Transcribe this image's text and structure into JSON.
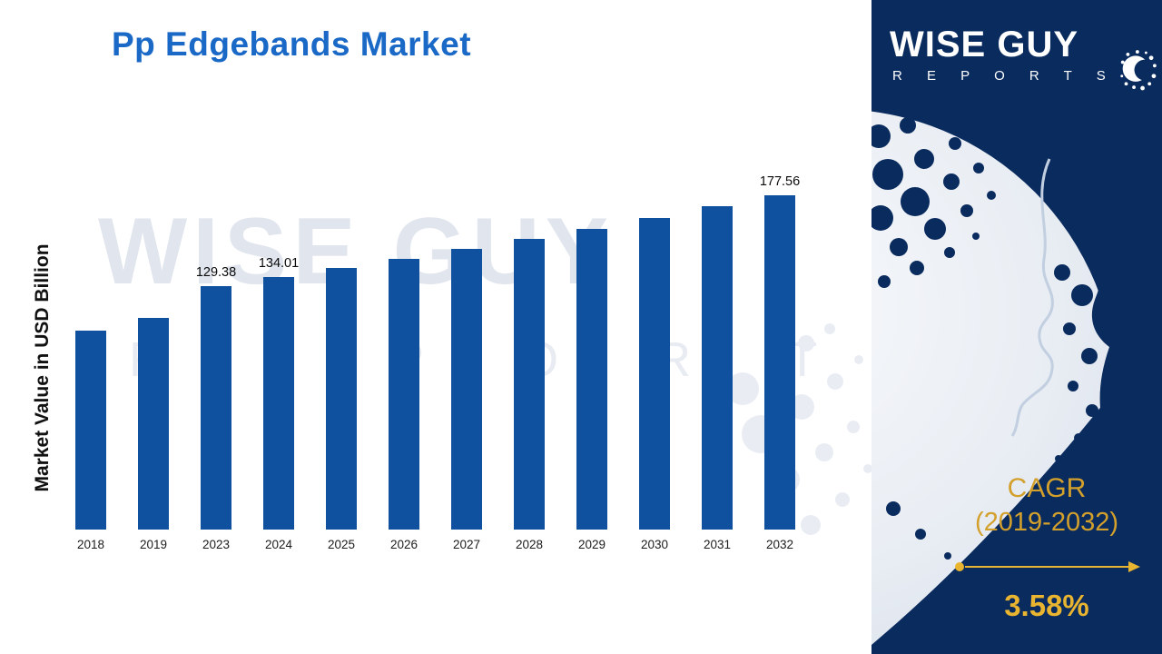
{
  "title": "Pp Edgebands Market",
  "watermark": {
    "line1": "WISE GUY",
    "line2": "REPORTS"
  },
  "logo": {
    "wordmark": "WISE GUY",
    "subtext": "REPORTS"
  },
  "chart_data": {
    "type": "bar",
    "title": "Pp Edgebands Market",
    "ylabel": "Market Value in USD Billion",
    "xlabel": "",
    "categories": [
      "2018",
      "2019",
      "2023",
      "2024",
      "2025",
      "2026",
      "2027",
      "2028",
      "2029",
      "2030",
      "2031",
      "2032"
    ],
    "values": [
      105.6,
      112.4,
      129.38,
      134.01,
      139.1,
      143.9,
      149.1,
      154.4,
      159.7,
      165.5,
      171.7,
      177.56
    ],
    "data_labels": {
      "2023": "129.38",
      "2024": "134.01",
      "2032": "177.56"
    },
    "ylim": [
      0,
      190
    ],
    "grid": false,
    "legend": false,
    "bar_color": "#0f519f"
  },
  "sidebar": {
    "cagr_label": "CAGR",
    "cagr_range": "(2019-2032)",
    "cagr_value": "3.58%"
  },
  "colors": {
    "title_blue": "#1b69c6",
    "panel_navy": "#0a2b5e",
    "accent_gold": "#d3a02c",
    "value_gold": "#e9b530",
    "watermark_gray": "#e1e6ee"
  },
  "icons": {
    "face_logo": "face-logo-icon",
    "divider": "cagr-arrow-divider-icon"
  }
}
